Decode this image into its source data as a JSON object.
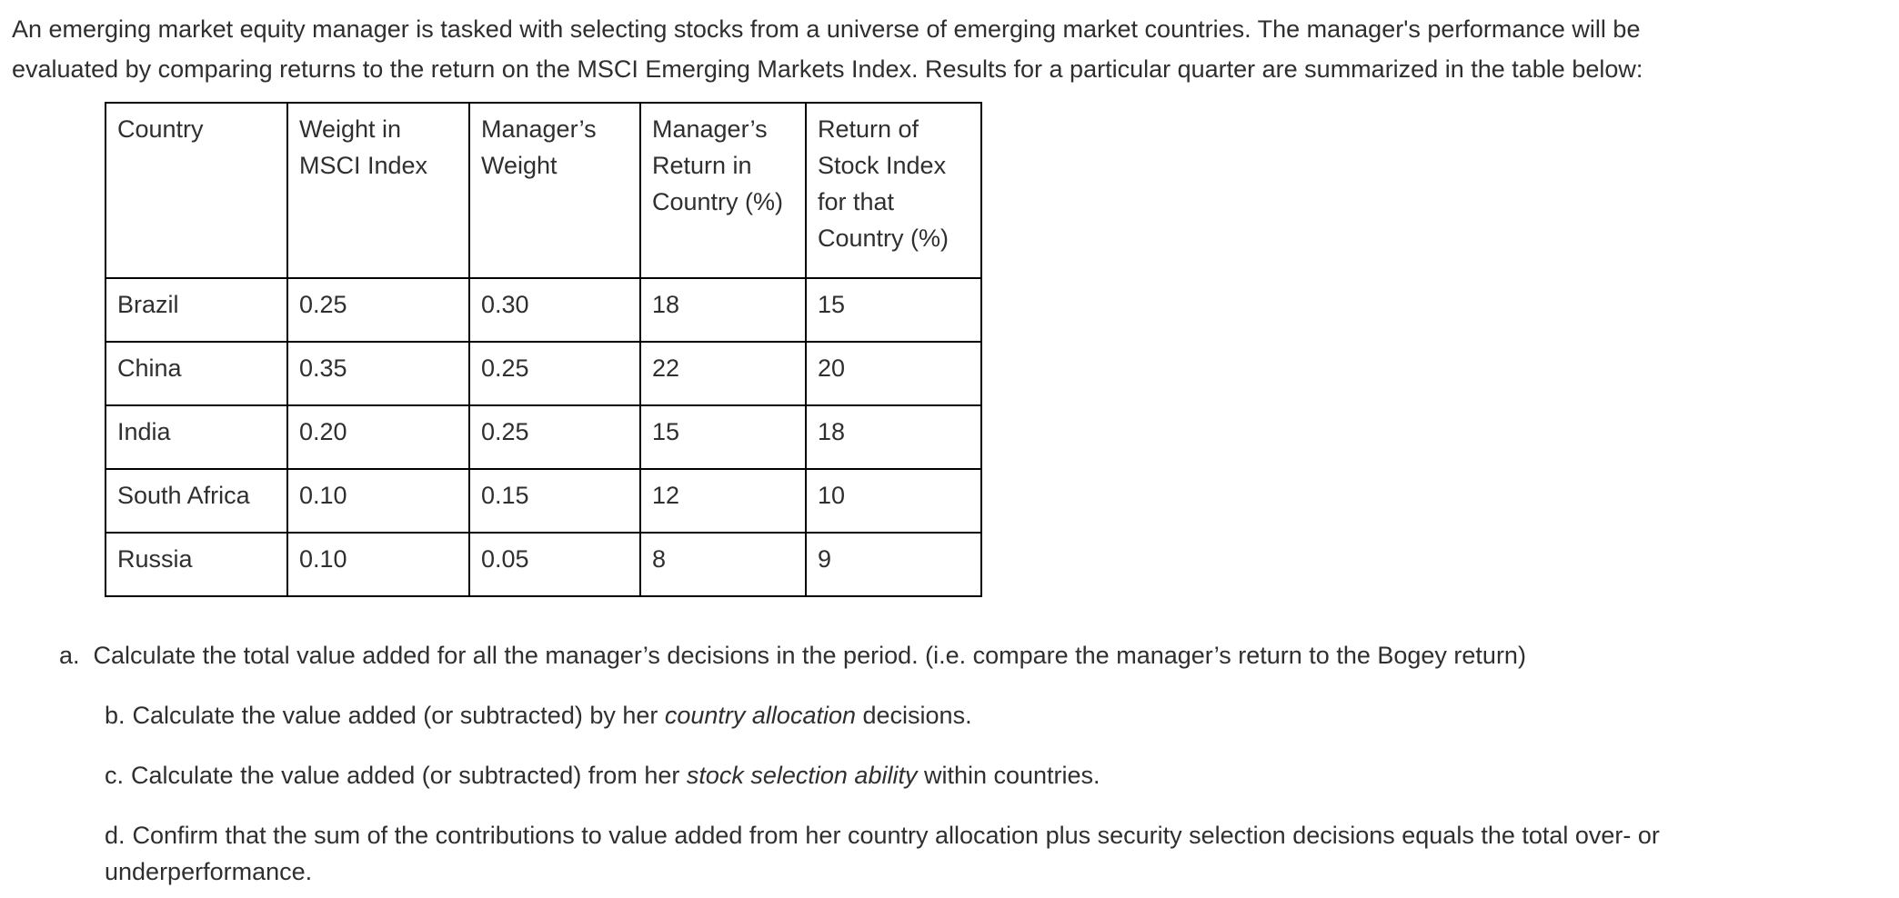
{
  "page": {
    "intro": "An emerging market equity manager is tasked with selecting stocks from a universe of emerging market countries. The manager's performance will be\nevaluated by comparing returns to the return on the MSCI Emerging Markets Index. Results for a particular quarter are summarized in the table below:"
  },
  "table": {
    "columns": [
      "Country",
      "Weight in MSCI Index",
      "Manager’s Weight",
      "Manager’s Return in Country (%)",
      "Return of Stock Index for that Country (%)"
    ],
    "rows": [
      {
        "country": "Brazil",
        "msci_weight": "0.25",
        "manager_weight": "0.30",
        "manager_return": "18",
        "index_return": "15"
      },
      {
        "country": "China",
        "msci_weight": "0.35",
        "manager_weight": "0.25",
        "manager_return": "22",
        "index_return": "20"
      },
      {
        "country": "India",
        "msci_weight": "0.20",
        "manager_weight": "0.25",
        "manager_return": "15",
        "index_return": "18"
      },
      {
        "country": "South Africa",
        "msci_weight": "0.10",
        "manager_weight": "0.15",
        "manager_return": "12",
        "index_return": "10"
      },
      {
        "country": "Russia",
        "msci_weight": "0.10",
        "manager_weight": "0.05",
        "manager_return": "8",
        "index_return": "9"
      }
    ]
  },
  "questions": {
    "a": {
      "label": "a.",
      "text": "Calculate the total value added for all the manager’s decisions in the period. (i.e. compare the manager’s return to the Bogey return)"
    },
    "b": {
      "label": "b.",
      "prefix": "Calculate the value added (or subtracted) by her ",
      "italic": "country allocation",
      "suffix": " decisions."
    },
    "c": {
      "label": "c.",
      "prefix": "Calculate the value added (or subtracted) from her ",
      "italic": "stock selection ability",
      "suffix": " within countries."
    },
    "d": {
      "label": "d.",
      "text": "Confirm that the sum of the contributions to value added from her country allocation plus security selection decisions equals the total over- or\nunderperformance."
    }
  }
}
